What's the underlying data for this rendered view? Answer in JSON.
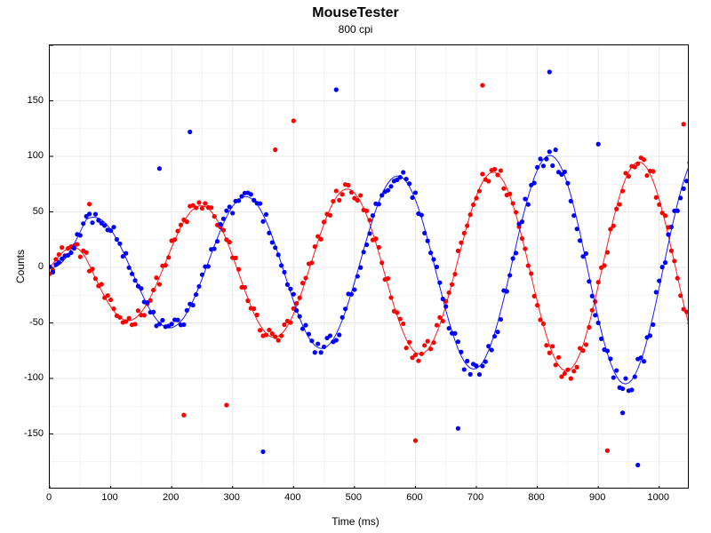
{
  "chart": {
    "type": "scatter+line",
    "title": "MouseTester",
    "subtitle": "800 cpi",
    "xlabel": "Time (ms)",
    "ylabel": "Counts",
    "title_fontsize": 16,
    "subtitle_fontsize": 12,
    "label_fontsize": 12,
    "tick_fontsize": 11,
    "background_color": "#ffffff",
    "plot_border_color": "#000000",
    "major_grid_color": "#e8e8e8",
    "minor_grid_color": "#f4f4f4",
    "xlim": [
      0,
      1050
    ],
    "ylim": [
      -200,
      200
    ],
    "xtick_step": 100,
    "ytick_step": 50,
    "x_minor_ticks_per_major": 2,
    "y_minor_ticks_per_major": 2,
    "marker_radius": 2.6,
    "line_width": 1.0,
    "series": {
      "red": {
        "color": "#ff0000",
        "line_opacity": 0.9,
        "sine": {
          "amp_start": 40,
          "amp_end": 95,
          "period_ms": 240,
          "phase_deg": 80,
          "t_start": 0,
          "t_end": 1050,
          "dt": 5
        },
        "outliers": [
          {
            "x": 65,
            "y": 57
          },
          {
            "x": 220,
            "y": -133
          },
          {
            "x": 290,
            "y": -124
          },
          {
            "x": 370,
            "y": 106
          },
          {
            "x": 400,
            "y": 132
          },
          {
            "x": 600,
            "y": -156
          },
          {
            "x": 710,
            "y": 164
          },
          {
            "x": 915,
            "y": -165
          },
          {
            "x": 1040,
            "y": 129
          }
        ]
      },
      "blue": {
        "color": "#0000ff",
        "line_opacity": 0.9,
        "sine": {
          "amp_start": 40,
          "amp_end": 105,
          "period_ms": 250,
          "phase_deg": -10,
          "t_start": 0,
          "t_end": 1050,
          "dt": 5
        },
        "outliers": [
          {
            "x": 180,
            "y": 89
          },
          {
            "x": 230,
            "y": 122
          },
          {
            "x": 350,
            "y": -166
          },
          {
            "x": 470,
            "y": 160
          },
          {
            "x": 670,
            "y": -145
          },
          {
            "x": 820,
            "y": 176
          },
          {
            "x": 900,
            "y": 111
          },
          {
            "x": 940,
            "y": -131
          },
          {
            "x": 965,
            "y": -178
          }
        ]
      }
    }
  }
}
